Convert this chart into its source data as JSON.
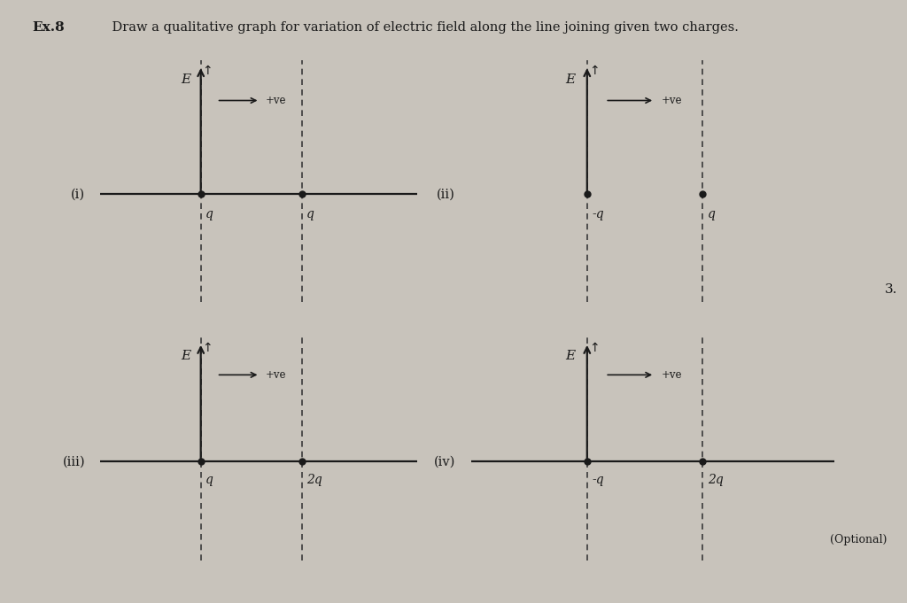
{
  "bg_color": "#c8c3bb",
  "line_color": "#1a1a1a",
  "dashed_color": "#3a3a3a",
  "title_bold": "Ex.8",
  "title_rest": "    Draw a qualitative graph for variation of electric field along the line joining given two charges.",
  "optional_text": "(Optional)",
  "right_text": "3.",
  "subplots": [
    {
      "label": "(i)",
      "charge1": "q",
      "charge2": "q",
      "x_arrow": false,
      "E_at_charge1": true
    },
    {
      "label": "(ii)",
      "charge1": "-q",
      "charge2": "q",
      "x_arrow": true,
      "E_at_charge1": false
    },
    {
      "label": "(iii)",
      "charge1": "q",
      "charge2": "2q",
      "x_arrow": false,
      "E_at_charge1": true
    },
    {
      "label": "(iv)",
      "charge1": "-q",
      "charge2": "2q",
      "x_arrow": false,
      "E_at_charge1": false
    }
  ]
}
